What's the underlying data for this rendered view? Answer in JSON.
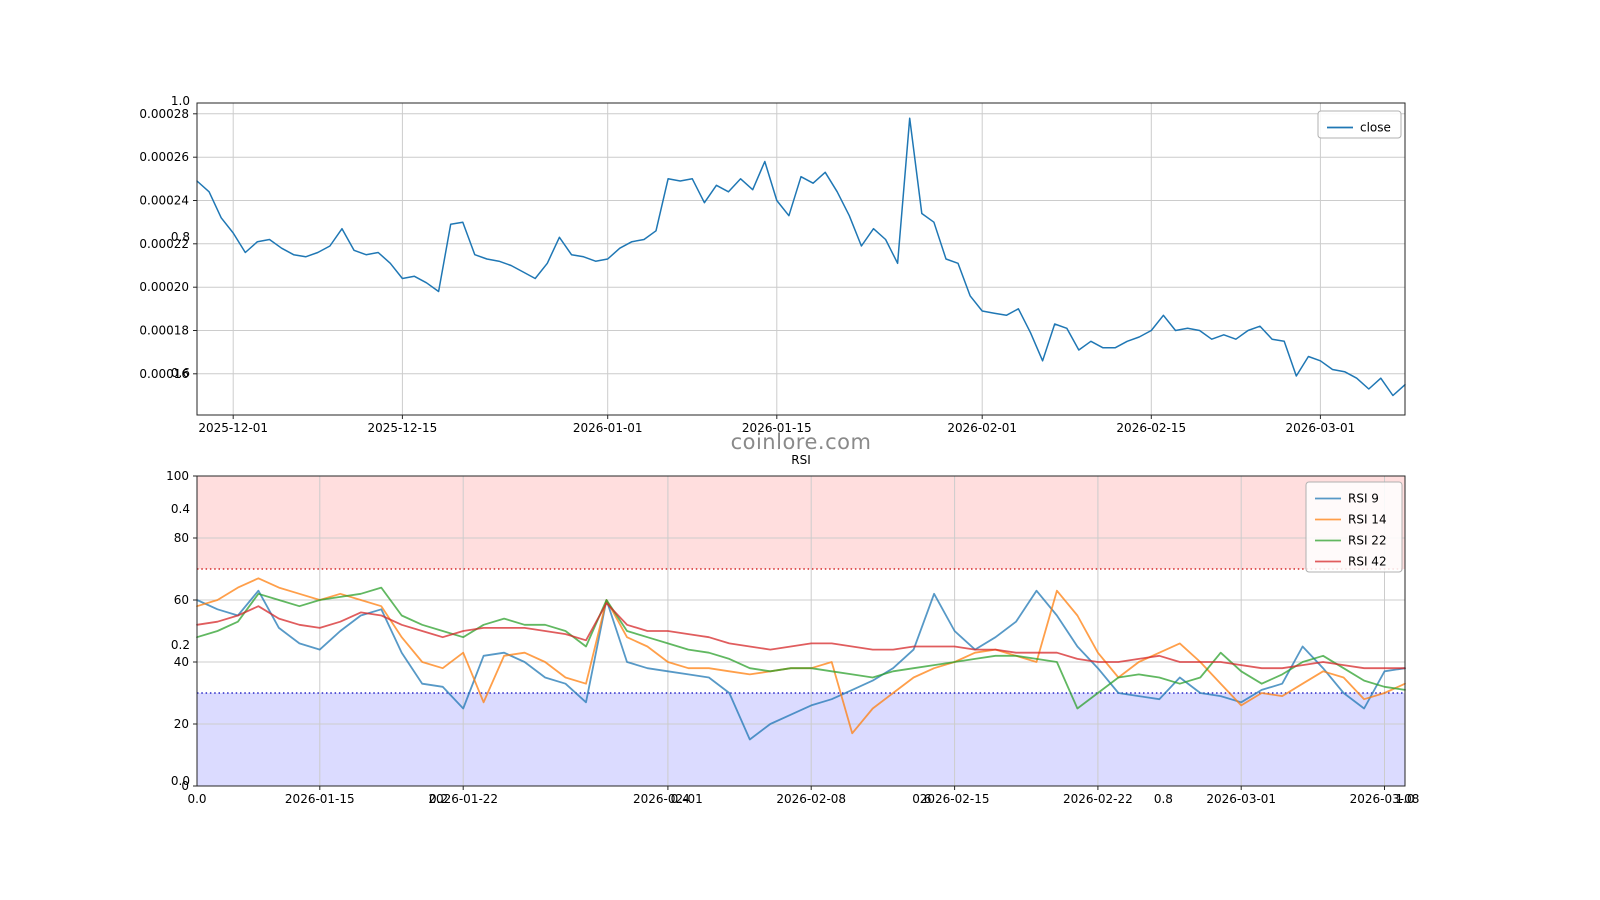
{
  "watermark": "coinlore.com",
  "colors": {
    "grid": "#cccccc",
    "spine": "#262626",
    "tick_text": "#000000",
    "watermark": "#8a8a8a",
    "legend_border": "#b0b0b0"
  },
  "secondary_axis": {
    "yticks": [
      "0.0",
      "0.2",
      "0.4",
      "0.6",
      "0.8",
      "1.0"
    ],
    "xticks": [
      "0.0",
      "0.2",
      "0.4",
      "0.6",
      "0.8",
      "1.0"
    ]
  },
  "chart_data": [
    {
      "type": "line",
      "title": "",
      "xlabel": "",
      "ylabel": "",
      "grid": true,
      "legend_position": "upper right",
      "ylim": [
        0.000141,
        0.000285
      ],
      "yticks": [
        {
          "v": 0.00016,
          "label": "0.00016"
        },
        {
          "v": 0.00018,
          "label": "0.00018"
        },
        {
          "v": 0.0002,
          "label": "0.00020"
        },
        {
          "v": 0.00022,
          "label": "0.00022"
        },
        {
          "v": 0.00024,
          "label": "0.00024"
        },
        {
          "v": 0.00026,
          "label": "0.00026"
        },
        {
          "v": 0.00028,
          "label": "0.00028"
        }
      ],
      "xticks": [
        {
          "i": 3,
          "label": "2025-12-01"
        },
        {
          "i": 17,
          "label": "2025-12-15"
        },
        {
          "i": 34,
          "label": "2026-01-01"
        },
        {
          "i": 48,
          "label": "2026-01-15"
        },
        {
          "i": 65,
          "label": "2026-02-01"
        },
        {
          "i": 79,
          "label": "2026-02-15"
        },
        {
          "i": 93,
          "label": "2026-03-01"
        }
      ],
      "series": [
        {
          "name": "close",
          "color": "#1f77b4",
          "values": [
            0.000249,
            0.000244,
            0.000232,
            0.000225,
            0.000216,
            0.000221,
            0.000222,
            0.000218,
            0.000215,
            0.000214,
            0.000216,
            0.000219,
            0.000227,
            0.000217,
            0.000215,
            0.000216,
            0.000211,
            0.000204,
            0.000205,
            0.000202,
            0.000198,
            0.000229,
            0.00023,
            0.000215,
            0.000213,
            0.000212,
            0.00021,
            0.000207,
            0.000204,
            0.000211,
            0.000223,
            0.000215,
            0.000214,
            0.000212,
            0.000213,
            0.000218,
            0.000221,
            0.000222,
            0.000226,
            0.00025,
            0.000249,
            0.00025,
            0.000239,
            0.000247,
            0.000244,
            0.00025,
            0.000245,
            0.000258,
            0.00024,
            0.000233,
            0.000251,
            0.000248,
            0.000253,
            0.000244,
            0.000233,
            0.000219,
            0.000227,
            0.000222,
            0.000211,
            0.000278,
            0.000234,
            0.00023,
            0.000213,
            0.000211,
            0.000196,
            0.000189,
            0.000188,
            0.000187,
            0.00019,
            0.000179,
            0.000166,
            0.000183,
            0.000181,
            0.000171,
            0.000175,
            0.000172,
            0.000172,
            0.000175,
            0.000177,
            0.00018,
            0.000187,
            0.00018,
            0.000181,
            0.00018,
            0.000176,
            0.000178,
            0.000176,
            0.00018,
            0.000182,
            0.000176,
            0.000175,
            0.000159,
            0.000168,
            0.000166,
            0.000162,
            0.000161,
            0.000158,
            0.000153,
            0.000158,
            0.00015,
            0.000155
          ]
        }
      ]
    },
    {
      "type": "line",
      "title": "RSI",
      "xlabel": "",
      "ylabel": "",
      "grid": true,
      "legend_position": "upper right",
      "ylim": [
        0,
        100
      ],
      "overbought_level": 70,
      "oversold_level": 30,
      "overbought_fill": "rgba(255,0,0,0.13)",
      "oversold_fill": "rgba(0,0,255,0.14)",
      "overbought_line_color": "#cc0000",
      "oversold_line_color": "#0000bb",
      "yticks": [
        {
          "v": 0,
          "label": "0"
        },
        {
          "v": 20,
          "label": "20"
        },
        {
          "v": 40,
          "label": "40"
        },
        {
          "v": 60,
          "label": "60"
        },
        {
          "v": 80,
          "label": "80"
        },
        {
          "v": 100,
          "label": "100"
        }
      ],
      "xticks": [
        {
          "i": 6,
          "label": "2026-01-15"
        },
        {
          "i": 13,
          "label": "2026-01-22"
        },
        {
          "i": 23,
          "label": "2026-02-01"
        },
        {
          "i": 30,
          "label": "2026-02-08"
        },
        {
          "i": 37,
          "label": "2026-02-15"
        },
        {
          "i": 44,
          "label": "2026-02-22"
        },
        {
          "i": 51,
          "label": "2026-03-01"
        },
        {
          "i": 58,
          "label": "2026-03-08"
        }
      ],
      "series": [
        {
          "name": "RSI 9",
          "color": "#1f77b4",
          "values": [
            60,
            57,
            55,
            63,
            51,
            46,
            44,
            50,
            55,
            57,
            43,
            33,
            32,
            25,
            42,
            43,
            40,
            35,
            33,
            27,
            60,
            40,
            38,
            37,
            36,
            35,
            30,
            15,
            20,
            23,
            26,
            28,
            31,
            34,
            38,
            44,
            62,
            50,
            44,
            48,
            53,
            63,
            55,
            45,
            38,
            30,
            29,
            28,
            35,
            30,
            29,
            27,
            31,
            33,
            45,
            38,
            30,
            25,
            37,
            38
          ]
        },
        {
          "name": "RSI 14",
          "color": "#ff7f0e",
          "values": [
            58,
            60,
            64,
            67,
            64,
            62,
            60,
            62,
            60,
            58,
            48,
            40,
            38,
            43,
            27,
            42,
            43,
            40,
            35,
            33,
            60,
            48,
            45,
            40,
            38,
            38,
            37,
            36,
            37,
            38,
            38,
            40,
            17,
            25,
            30,
            35,
            38,
            40,
            43,
            44,
            42,
            40,
            63,
            55,
            43,
            35,
            40,
            43,
            46,
            40,
            33,
            26,
            30,
            29,
            33,
            37,
            35,
            28,
            30,
            33
          ]
        },
        {
          "name": "RSI 22",
          "color": "#2ca02c",
          "values": [
            48,
            50,
            53,
            62,
            60,
            58,
            60,
            61,
            62,
            64,
            55,
            52,
            50,
            48,
            52,
            54,
            52,
            52,
            50,
            45,
            60,
            50,
            48,
            46,
            44,
            43,
            41,
            38,
            37,
            38,
            38,
            37,
            36,
            35,
            37,
            38,
            39,
            40,
            41,
            42,
            42,
            41,
            40,
            25,
            30,
            35,
            36,
            35,
            33,
            35,
            43,
            37,
            33,
            36,
            40,
            42,
            38,
            34,
            32,
            31
          ]
        },
        {
          "name": "RSI 42",
          "color": "#d62728",
          "values": [
            52,
            53,
            55,
            58,
            54,
            52,
            51,
            53,
            56,
            55,
            52,
            50,
            48,
            50,
            51,
            51,
            51,
            50,
            49,
            47,
            59,
            52,
            50,
            50,
            49,
            48,
            46,
            45,
            44,
            45,
            46,
            46,
            45,
            44,
            44,
            45,
            45,
            45,
            44,
            44,
            43,
            43,
            43,
            41,
            40,
            40,
            41,
            42,
            40,
            40,
            40,
            39,
            38,
            38,
            39,
            40,
            39,
            38,
            38,
            38
          ]
        }
      ]
    }
  ]
}
